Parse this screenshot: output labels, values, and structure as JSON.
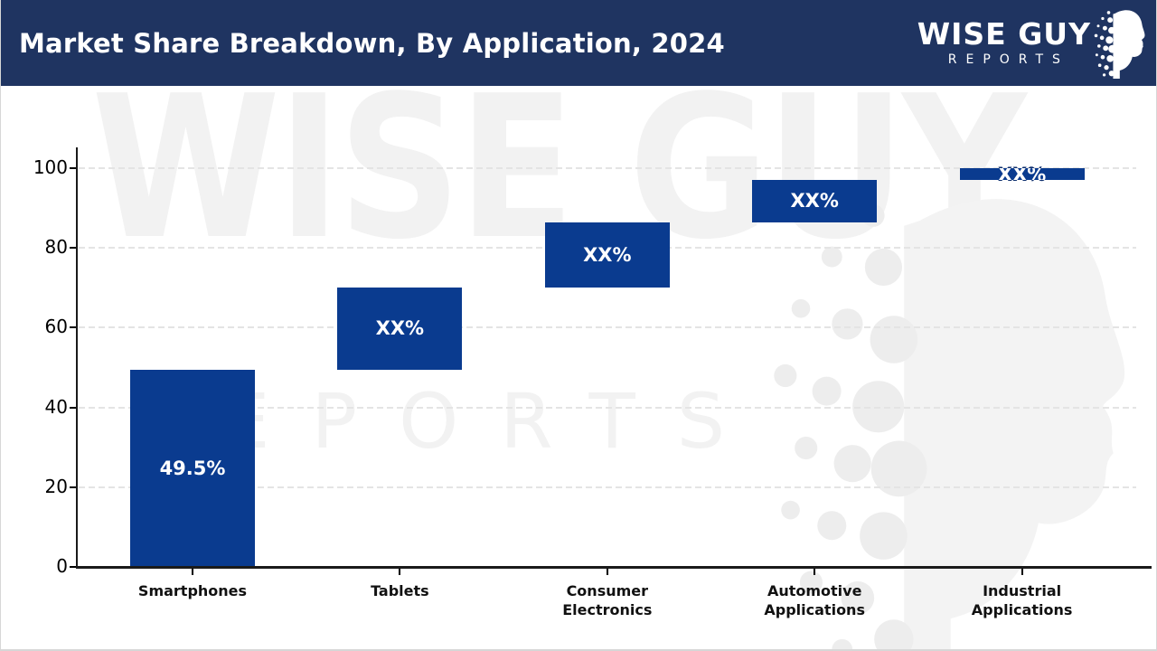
{
  "header": {
    "title": "Market Share Breakdown, By Application, 2024",
    "logo": {
      "line1": "WISE GUY",
      "line2": "REPORTS"
    }
  },
  "watermark": {
    "line1": "WISE GUY",
    "line2": "REPORTS"
  },
  "colors": {
    "header_bg": "#1f3461",
    "bar_blue": "#0a3b8f",
    "label_white": "#ffffff",
    "label_dark": "#0e2f6e",
    "grid_gray": "#e4e4e4",
    "axis_black": "#1a1a1a",
    "watermark_gray": "#f2f2f2"
  },
  "chart_data": {
    "type": "bar",
    "subtype": "waterfall-floating-bars",
    "title": "Market Share Breakdown, By Application, 2024",
    "xlabel": "",
    "ylabel": "",
    "ylim": [
      0,
      105
    ],
    "y_ticks": [
      0,
      20,
      40,
      60,
      80,
      100
    ],
    "grid": "horizontal-dashed",
    "legend": "none",
    "categories": [
      "Smartphones",
      "Tablets",
      "Consumer Electronics",
      "Automotive Applications",
      "Industrial Applications"
    ],
    "segments": [
      {
        "category": "Smartphones",
        "start": 0,
        "end": 49.5,
        "label": "49.5%"
      },
      {
        "category": "Tablets",
        "start": 49.5,
        "end": 70,
        "label": "XX%"
      },
      {
        "category": "Consumer Electronics",
        "start": 70,
        "end": 86.5,
        "label": "XX%"
      },
      {
        "category": "Automotive Applications",
        "start": 86.5,
        "end": 97,
        "label": "XX%"
      },
      {
        "category": "Industrial Applications",
        "start": 97,
        "end": 100,
        "label": "XX%"
      }
    ]
  }
}
